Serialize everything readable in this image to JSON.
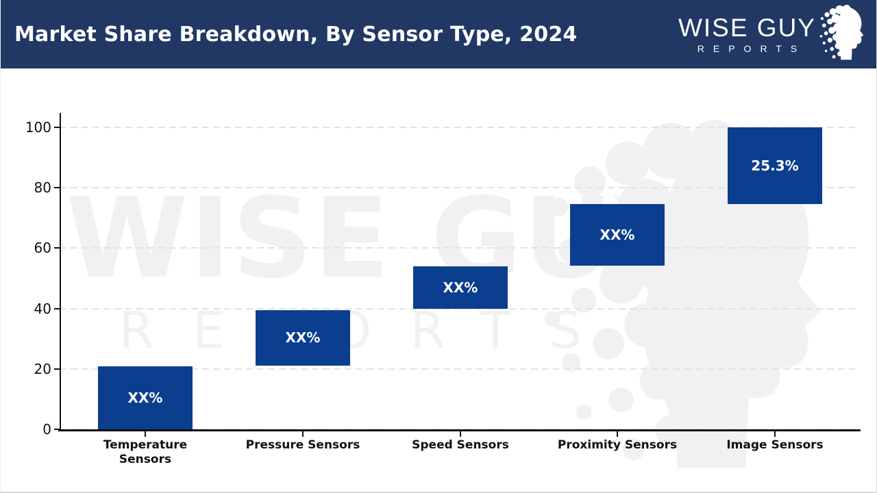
{
  "header": {
    "title": "Market Share Breakdown, By Sensor Type, 2024",
    "logo": {
      "line1": "WISE GUY",
      "line2": "REPORTS",
      "icon": "head-profile-dots-icon"
    }
  },
  "watermark": {
    "line1": "WISE GUY",
    "line2": "REPORTS"
  },
  "colors": {
    "header_bg": "#213864",
    "bar": "#0c3e8f",
    "bar_label": "#ffffff",
    "grid": "#e2e2e2",
    "axis": "#111111",
    "text": "#111111",
    "watermark": "#f1f1f3"
  },
  "chart_data": {
    "type": "bar",
    "subtype": "floating-waterfall",
    "title": "Market Share Breakdown, By Sensor Type, 2024",
    "categories": [
      "Temperature\nSensors",
      "Pressure Sensors",
      "Speed Sensors",
      "Proximity Sensors",
      "Image Sensors"
    ],
    "series": [
      {
        "name": "Market share (%)",
        "segments": [
          {
            "category": "Temperature Sensors",
            "start": 0,
            "end": 20.9,
            "label": "XX%"
          },
          {
            "category": "Pressure Sensors",
            "start": 21.1,
            "end": 39.5,
            "label": "XX%"
          },
          {
            "category": "Speed Sensors",
            "start": 39.9,
            "end": 54.0,
            "label": "XX%"
          },
          {
            "category": "Proximity Sensors",
            "start": 54.2,
            "end": 74.6,
            "label": "XX%"
          },
          {
            "category": "Image Sensors",
            "start": 74.7,
            "end": 100.0,
            "label": "25.3%"
          }
        ]
      }
    ],
    "labels": [
      "XX%",
      "XX%",
      "XX%",
      "XX%",
      "25.3%"
    ],
    "ylim": [
      0,
      100
    ],
    "yticks": [
      0,
      20,
      40,
      60,
      80,
      100
    ],
    "xlabel": "",
    "ylabel": "",
    "grid": "horizontal-dashed",
    "legend": "none"
  }
}
